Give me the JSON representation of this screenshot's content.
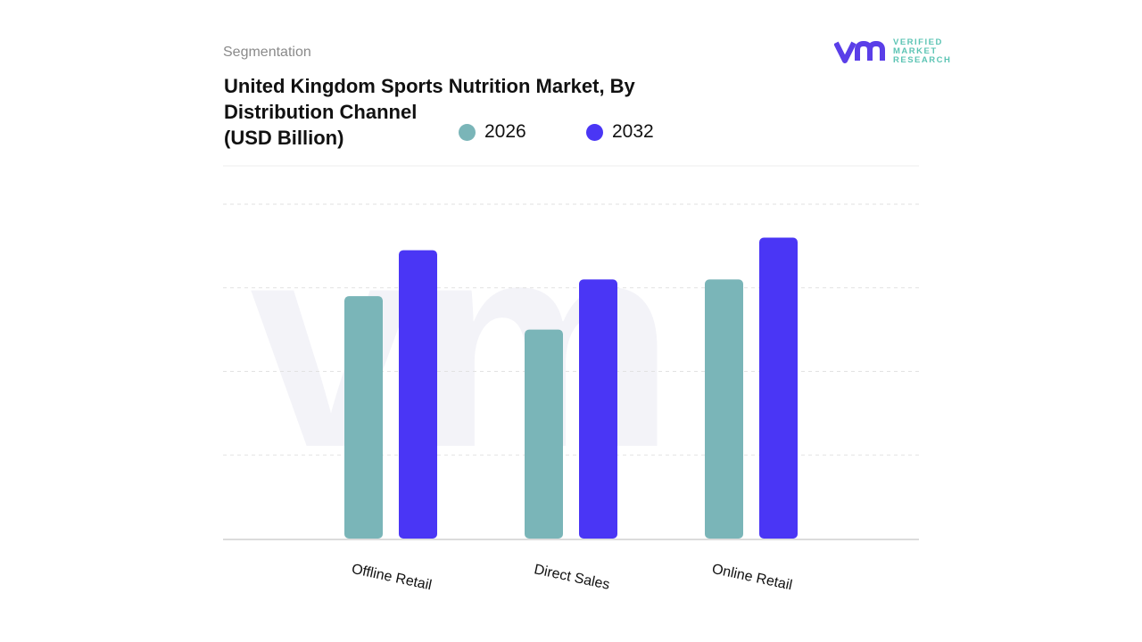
{
  "header": {
    "section": "Segmentation",
    "title_lines": [
      "United Kingdom Sports Nutrition Market, By",
      "Distribution Channel",
      "(USD Billion)"
    ]
  },
  "logo": {
    "mark": "vmr",
    "text_lines": [
      "VERIFIED",
      "MARKET",
      "RESEARCH"
    ]
  },
  "colors": {
    "series_2026": "#7ab5b8",
    "series_2032": "#4a36f5",
    "grid": "#e4e4e4",
    "logo_purple": "#5a3ee8",
    "logo_teal": "#5cc4b4"
  },
  "chart_data": {
    "type": "bar",
    "title": "United Kingdom Sports Nutrition Market, By Distribution Channel (USD Billion)",
    "categories": [
      "Offline Retail",
      "Direct Sales",
      "Online Retail"
    ],
    "series": [
      {
        "name": "2026",
        "values": [
          2.9,
          2.5,
          3.1
        ]
      },
      {
        "name": "2032",
        "values": [
          3.45,
          3.1,
          3.6
        ]
      }
    ],
    "ylim": [
      0,
      4
    ],
    "grid": true,
    "legend": "top",
    "y_tick_labels_shown": false
  }
}
